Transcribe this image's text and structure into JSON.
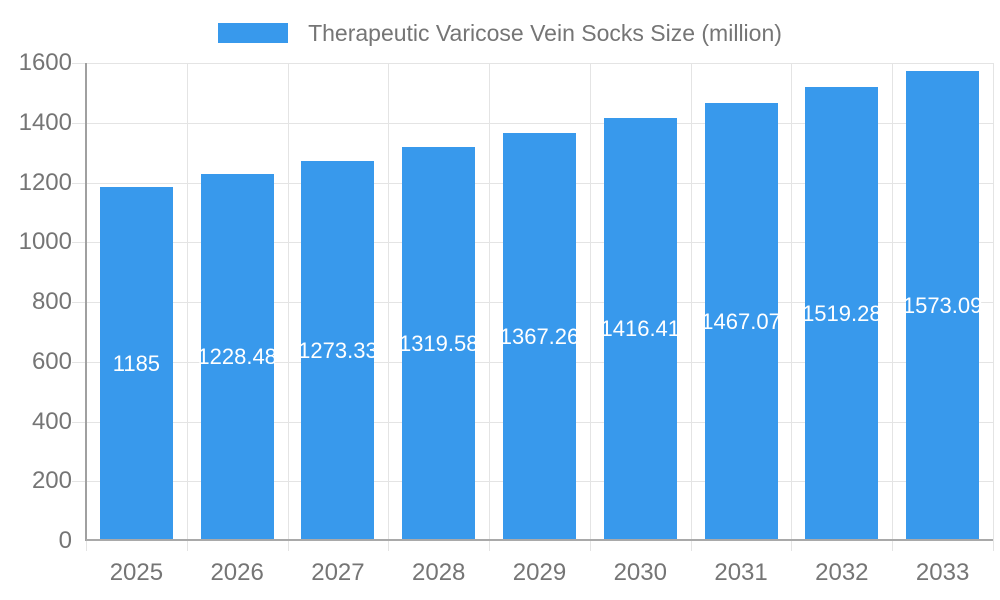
{
  "chart_data": {
    "type": "bar",
    "title": "Therapeutic Varicose Vein Socks Size (million)",
    "legend_position": "top",
    "categories": [
      "2025",
      "2026",
      "2027",
      "2028",
      "2029",
      "2030",
      "2031",
      "2032",
      "2033"
    ],
    "values": [
      1185,
      1228.48,
      1273.33,
      1319.58,
      1367.26,
      1416.41,
      1467.07,
      1519.28,
      1573.09
    ],
    "value_labels": [
      "1185",
      "1228.48",
      "1273.33",
      "1319.58",
      "1367.26",
      "1416.41",
      "1467.07",
      "1519.28",
      "1573.09"
    ],
    "xlabel": "",
    "ylabel": "",
    "ylim": [
      0,
      1600
    ],
    "ytick_step": 200,
    "grid": true,
    "colors": {
      "bar": "#3899ec",
      "grid": "#e4e4e4",
      "axis": "#a0a0a0",
      "tick_label": "#757575",
      "bar_label": "#ffffff",
      "background": "#ffffff"
    }
  }
}
